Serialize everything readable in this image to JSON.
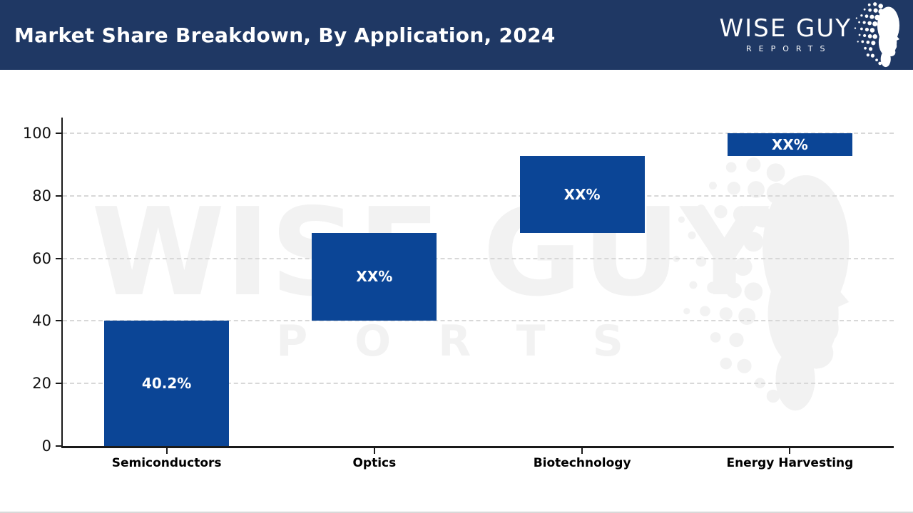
{
  "header": {
    "title": "Market Share Breakdown, By Application, 2024",
    "logo": {
      "line1": "WISE GUY",
      "line2": "REPORTS"
    }
  },
  "watermark": {
    "line1": "WISE GUY",
    "line2": "REPORTS"
  },
  "colors": {
    "header_bg": "#1f3864",
    "bar": "#0b4596",
    "grid": "#d8d8d8",
    "axis": "#1a1a1a",
    "watermark": "#f2f2f2",
    "bar_label": "#ffffff"
  },
  "chart_data": {
    "type": "bar",
    "subtype": "waterfall-floating-bars",
    "title": "Market Share Breakdown, By Application, 2024",
    "categories": [
      "Semiconductors",
      "Optics",
      "Biotechnology",
      "Energy Harvesting"
    ],
    "bars": [
      {
        "category": "Semiconductors",
        "start": 0,
        "end": 40.2,
        "label": "40.2%"
      },
      {
        "category": "Optics",
        "start": 40.2,
        "end": 68.2,
        "label": "XX%"
      },
      {
        "category": "Biotechnology",
        "start": 68.2,
        "end": 92.6,
        "label": "XX%"
      },
      {
        "category": "Energy Harvesting",
        "start": 92.6,
        "end": 100,
        "label": "XX%"
      }
    ],
    "xlabel": "",
    "ylabel": "",
    "ylim": [
      0,
      100
    ],
    "yticks": [
      0,
      20,
      40,
      60,
      80,
      100
    ],
    "grid": "dashed-horizontal",
    "legend": "none",
    "bar_color": "#0b4596",
    "label_color": "#ffffff"
  }
}
